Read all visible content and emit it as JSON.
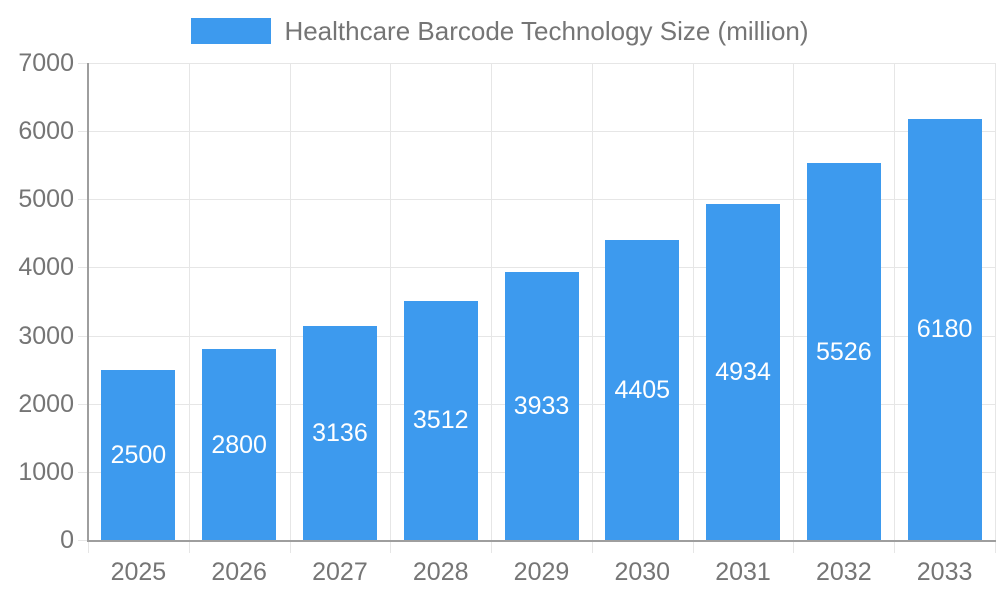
{
  "chart_data": {
    "type": "bar",
    "title": "Healthcare Barcode Technology Size (million)",
    "legend_label": "Healthcare Barcode Technology Size (million)",
    "legend_position": "top",
    "categories": [
      "2025",
      "2026",
      "2027",
      "2028",
      "2029",
      "2030",
      "2031",
      "2032",
      "2033"
    ],
    "values": [
      2500,
      2800,
      3136,
      3512,
      3933,
      4405,
      4934,
      5526,
      6180
    ],
    "value_labels_shown": true,
    "xlabel": "",
    "ylabel": "",
    "ylim": [
      0,
      7000
    ],
    "y_ticks": [
      0,
      1000,
      2000,
      3000,
      4000,
      5000,
      6000,
      7000
    ],
    "grid": true,
    "colors": {
      "bar": "#3D9AEE",
      "grid": "#E6E6E6",
      "axis": "#9E9E9E",
      "label": "#757575",
      "value_label": "#FFFFFF"
    }
  }
}
